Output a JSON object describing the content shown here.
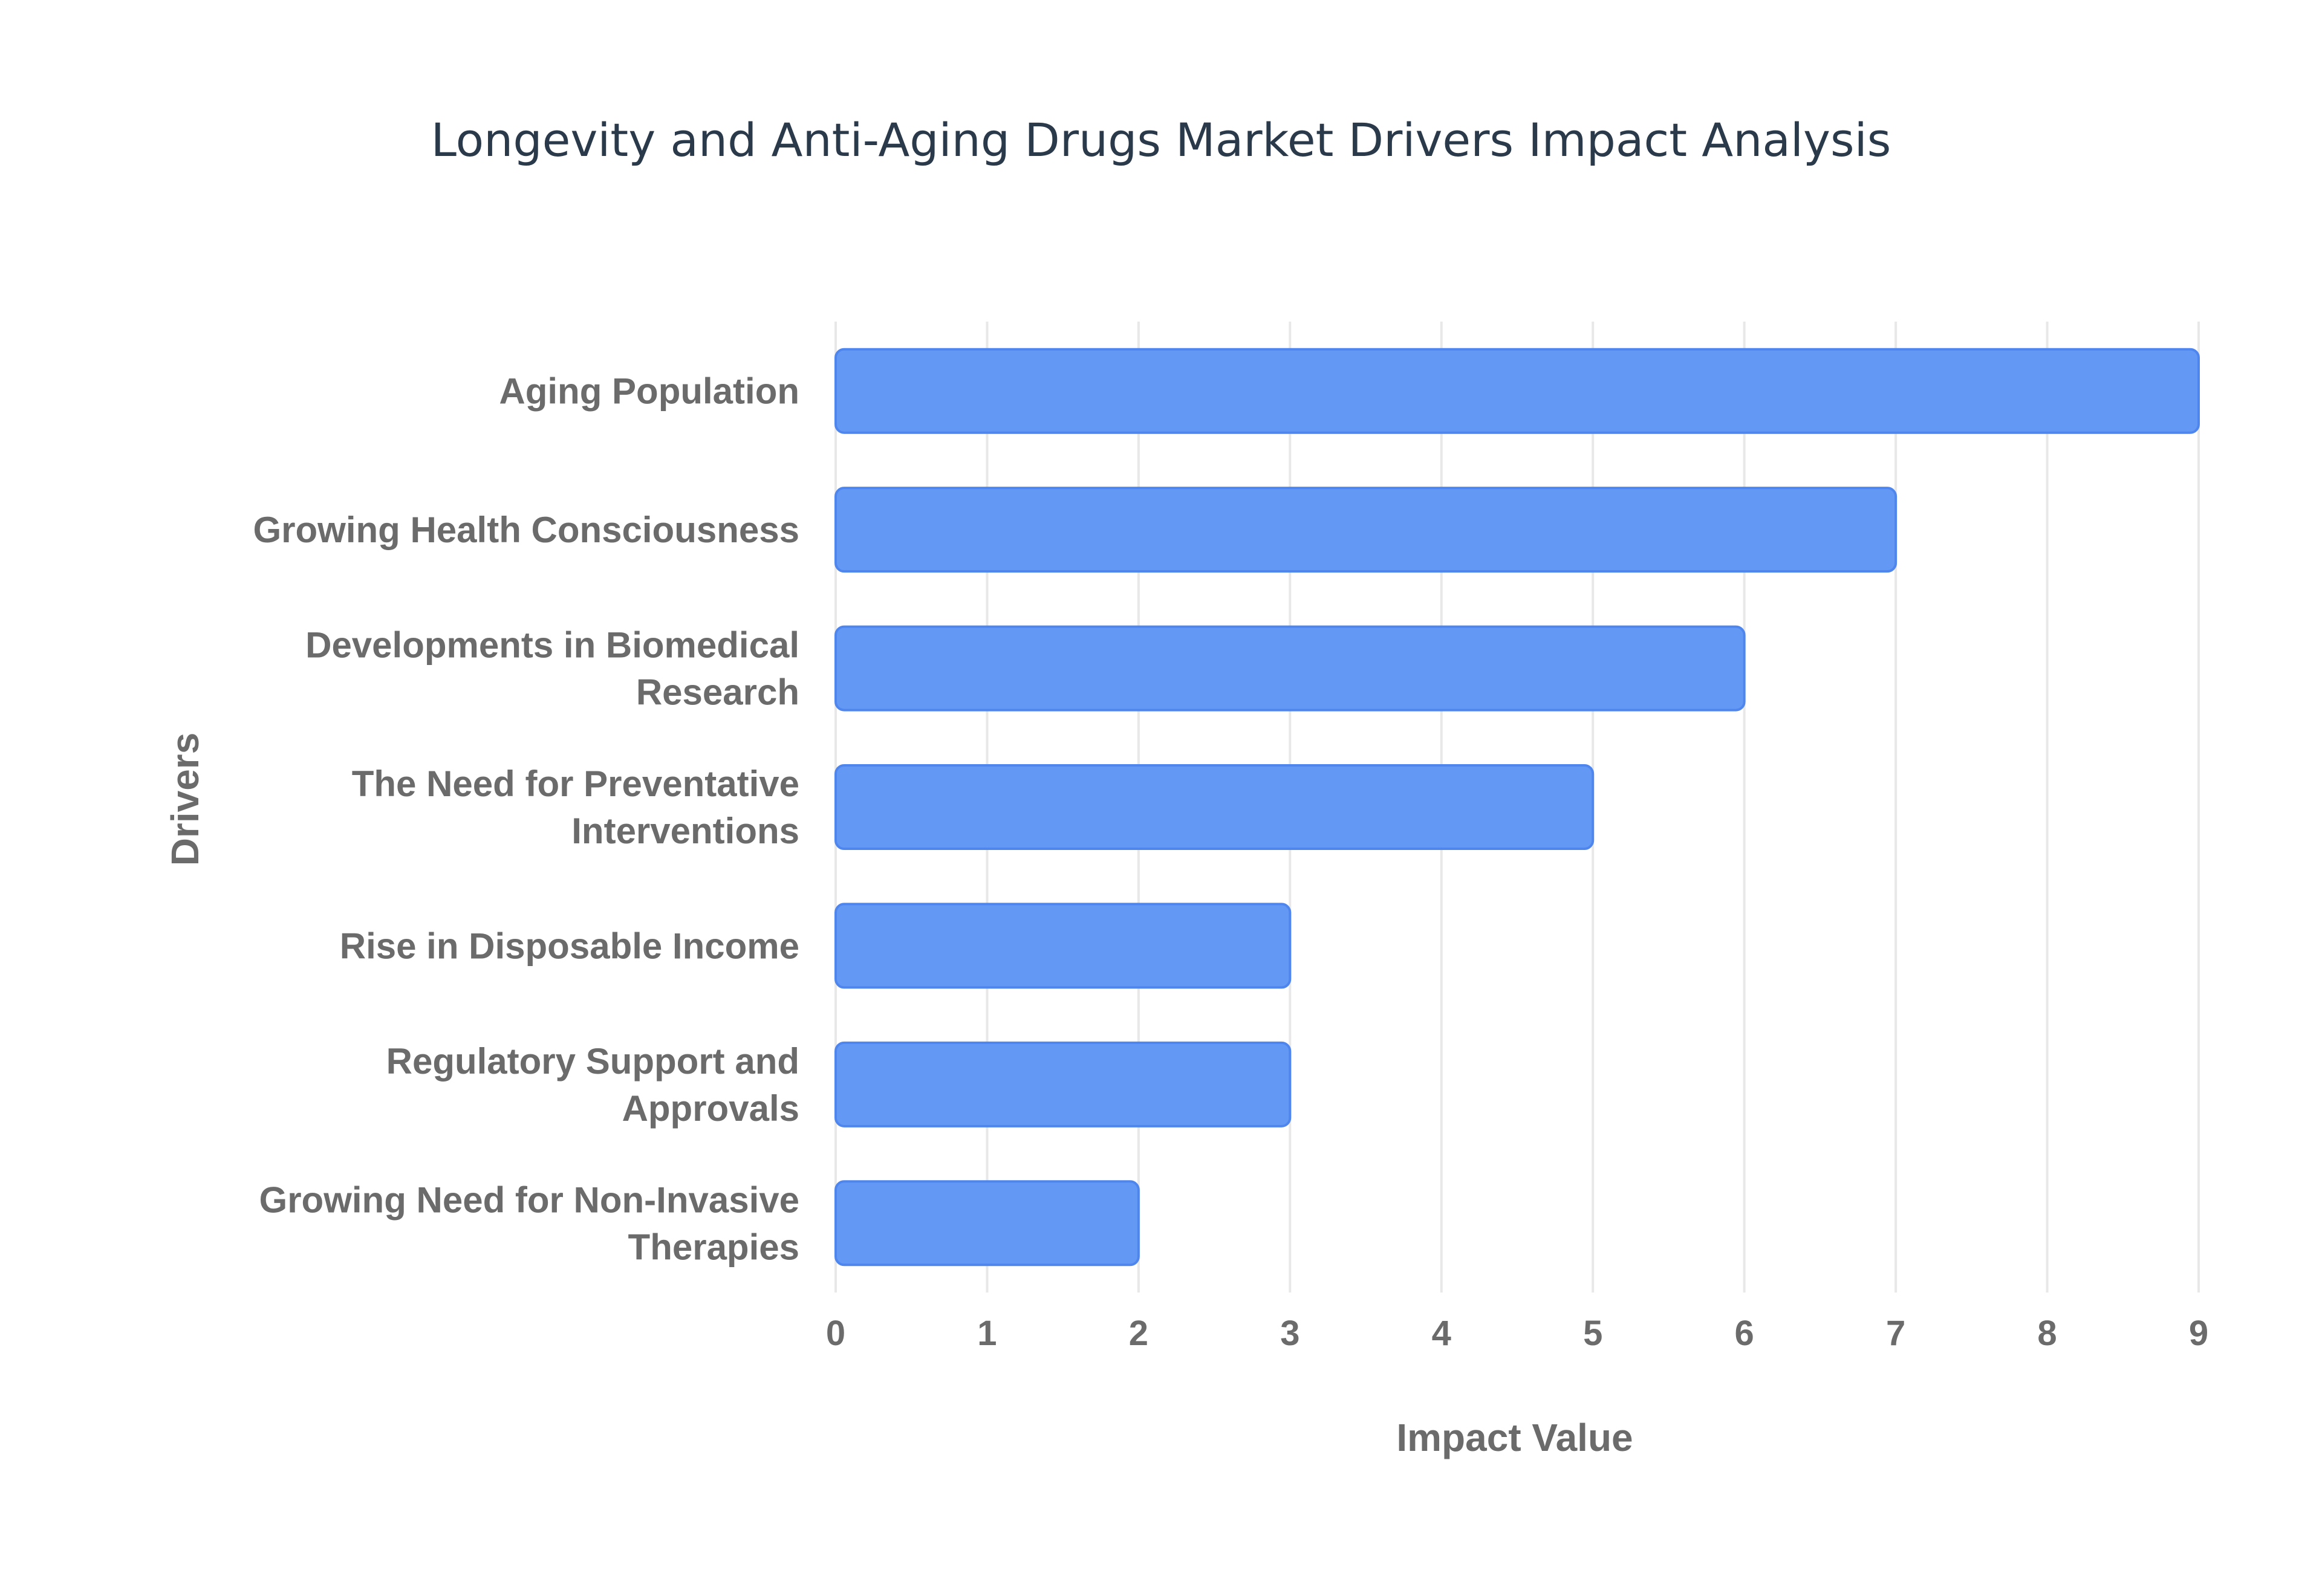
{
  "chart_data": {
    "type": "bar",
    "orientation": "horizontal",
    "title": "Longevity and Anti-Aging Drugs Market Drivers Impact Analysis",
    "xlabel": "Impact Value",
    "ylabel": "Drivers",
    "categories": [
      "Aging Population",
      "Growing Health Consciousness",
      "Developments in Biomedical Research",
      "The Need for Preventative Interventions",
      "Rise in Disposable Income",
      "Regulatory Support and Approvals",
      "Growing Need for Non-Invasive Therapies"
    ],
    "category_lines": [
      [
        "Aging Population"
      ],
      [
        "Growing Health Consciousness"
      ],
      [
        "Developments in Biomedical",
        "Research"
      ],
      [
        "The Need for Preventative",
        "Interventions"
      ],
      [
        "Rise in Disposable Income"
      ],
      [
        "Regulatory Support and",
        "Approvals"
      ],
      [
        "Growing Need for Non-Invasive",
        "Therapies"
      ]
    ],
    "values": [
      9,
      7,
      6,
      5,
      3,
      3,
      2
    ],
    "xlim": [
      0,
      9
    ],
    "xticks": [
      "0",
      "1",
      "2",
      "3",
      "4",
      "5",
      "6",
      "7",
      "8",
      "9"
    ],
    "grid": true,
    "legend": "none",
    "colors": {
      "bar_fill": "#6399f5",
      "bar_stroke": "#4f86ee",
      "grid": "#e8e8e8",
      "title": "#2b3a4a",
      "label": "#6b6b6b"
    }
  }
}
